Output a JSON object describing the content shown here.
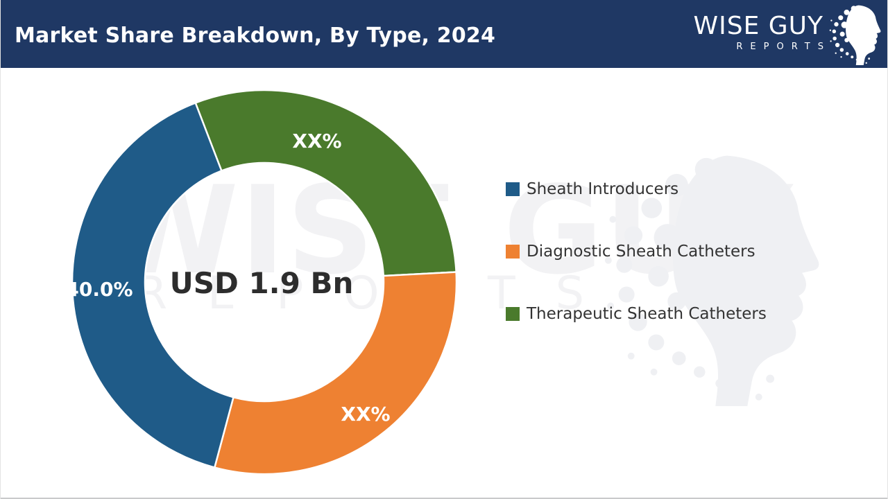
{
  "header": {
    "title": "Market Share Breakdown, By Type, 2024",
    "logo": {
      "line1": "WISE GUY",
      "line2": "REPORTS"
    }
  },
  "watermark": {
    "line1": "WISE GUY",
    "line2": "REPORTS"
  },
  "chart_data": {
    "type": "donut",
    "title": "Market Share Breakdown, By Type, 2024",
    "center_label": "USD 1.9 Bn",
    "start_angle_deg": -21,
    "slices": [
      {
        "name": "Therapeutic Sheath Catheters",
        "label": "XX%",
        "percent": 30,
        "color": "#4a7a2c"
      },
      {
        "name": "Diagnostic Sheath Catheters",
        "label": "XX%",
        "percent": 30,
        "color": "#ee8132"
      },
      {
        "name": "Sheath Introducers",
        "label": "40.0%",
        "percent": 40,
        "color": "#1f5b88"
      }
    ],
    "legend": [
      {
        "label": "Sheath Introducers",
        "color": "#1f5b88"
      },
      {
        "label": "Diagnostic Sheath Catheters",
        "color": "#ee8132"
      },
      {
        "label": "Therapeutic Sheath Catheters",
        "color": "#4a7a2c"
      }
    ],
    "legend_position": "right"
  }
}
